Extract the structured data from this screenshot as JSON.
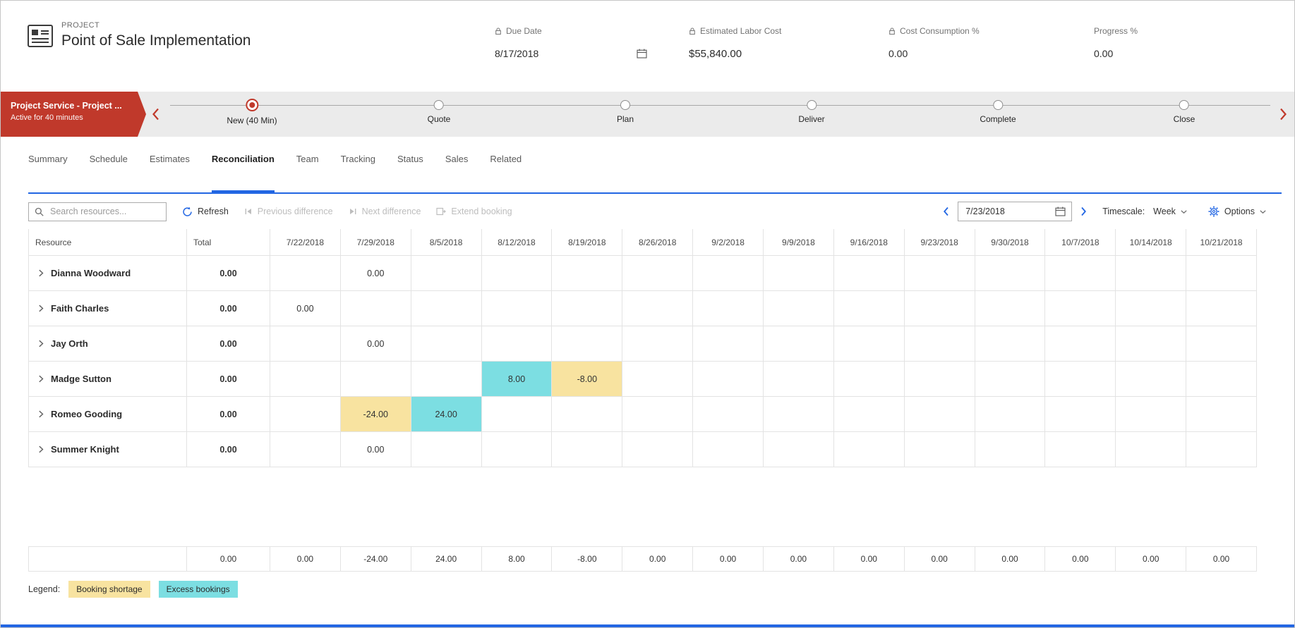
{
  "colors": {
    "accent": "#2266E3",
    "bpf_red": "#C0392B",
    "shortage_bg": "#F8E3A0",
    "excess_bg": "#7CDEE2",
    "bar_bg": "#EBEBEB",
    "border": "#E3E3E3",
    "text": "#333333",
    "muted": "#767676",
    "disabled": "#BDBDBD"
  },
  "header": {
    "project_label": "PROJECT",
    "title": "Point of Sale Implementation",
    "fields": [
      {
        "label": "Due Date",
        "value": "8/17/2018",
        "locked": true,
        "has_calendar": true
      },
      {
        "label": "Estimated Labor Cost",
        "value": "$55,840.00",
        "locked": true,
        "has_calendar": false
      },
      {
        "label": "Cost Consumption %",
        "value": "0.00",
        "locked": true,
        "has_calendar": false
      },
      {
        "label": "Progress %",
        "value": "0.00",
        "locked": false,
        "has_calendar": false
      }
    ]
  },
  "process": {
    "badge_title": "Project Service - Project ...",
    "badge_subtitle": "Active for 40 minutes",
    "stages": [
      {
        "label": "New (40 Min)",
        "active": true
      },
      {
        "label": "Quote",
        "active": false
      },
      {
        "label": "Plan",
        "active": false
      },
      {
        "label": "Deliver",
        "active": false
      },
      {
        "label": "Complete",
        "active": false
      },
      {
        "label": "Close",
        "active": false
      }
    ]
  },
  "tabs": {
    "items": [
      "Summary",
      "Schedule",
      "Estimates",
      "Reconciliation",
      "Team",
      "Tracking",
      "Status",
      "Sales",
      "Related"
    ],
    "active": "Reconciliation"
  },
  "toolbar": {
    "search_placeholder": "Search resources...",
    "refresh": "Refresh",
    "previous_difference": "Previous difference",
    "next_difference": "Next difference",
    "extend_booking": "Extend booking",
    "date_value": "7/23/2018",
    "timescale_label": "Timescale:",
    "timescale_value": "Week",
    "options": "Options"
  },
  "grid": {
    "resource_header": "Resource",
    "total_header": "Total",
    "week_headers": [
      "7/22/2018",
      "7/29/2018",
      "8/5/2018",
      "8/12/2018",
      "8/19/2018",
      "8/26/2018",
      "9/2/2018",
      "9/9/2018",
      "9/16/2018",
      "9/23/2018",
      "9/30/2018",
      "10/7/2018",
      "10/14/2018",
      "10/21/2018"
    ],
    "rows": [
      {
        "name": "Dianna Woodward",
        "total": "0.00",
        "cells": [
          null,
          {
            "value": "0.00",
            "highlight": null
          },
          null,
          null,
          null,
          null,
          null,
          null,
          null,
          null,
          null,
          null,
          null,
          null
        ]
      },
      {
        "name": "Faith Charles",
        "total": "0.00",
        "cells": [
          {
            "value": "0.00",
            "highlight": null
          },
          null,
          null,
          null,
          null,
          null,
          null,
          null,
          null,
          null,
          null,
          null,
          null,
          null
        ]
      },
      {
        "name": "Jay Orth",
        "total": "0.00",
        "cells": [
          null,
          {
            "value": "0.00",
            "highlight": null
          },
          null,
          null,
          null,
          null,
          null,
          null,
          null,
          null,
          null,
          null,
          null,
          null
        ]
      },
      {
        "name": "Madge Sutton",
        "total": "0.00",
        "cells": [
          null,
          null,
          null,
          {
            "value": "8.00",
            "highlight": "excess"
          },
          {
            "value": "-8.00",
            "highlight": "shortage"
          },
          null,
          null,
          null,
          null,
          null,
          null,
          null,
          null,
          null
        ]
      },
      {
        "name": "Romeo Gooding",
        "total": "0.00",
        "cells": [
          null,
          {
            "value": "-24.00",
            "highlight": "shortage"
          },
          {
            "value": "24.00",
            "highlight": "excess"
          },
          null,
          null,
          null,
          null,
          null,
          null,
          null,
          null,
          null,
          null,
          null
        ]
      },
      {
        "name": "Summer Knight",
        "total": "0.00",
        "cells": [
          null,
          {
            "value": "0.00",
            "highlight": null
          },
          null,
          null,
          null,
          null,
          null,
          null,
          null,
          null,
          null,
          null,
          null,
          null
        ]
      }
    ],
    "totals": [
      "0.00",
      "0.00",
      "-24.00",
      "24.00",
      "8.00",
      "-8.00",
      "0.00",
      "0.00",
      "0.00",
      "0.00",
      "0.00",
      "0.00",
      "0.00",
      "0.00",
      "0.00"
    ]
  },
  "legend": {
    "label": "Legend:",
    "items": [
      {
        "label": "Booking shortage",
        "type": "shortage"
      },
      {
        "label": "Excess bookings",
        "type": "excess"
      }
    ]
  }
}
